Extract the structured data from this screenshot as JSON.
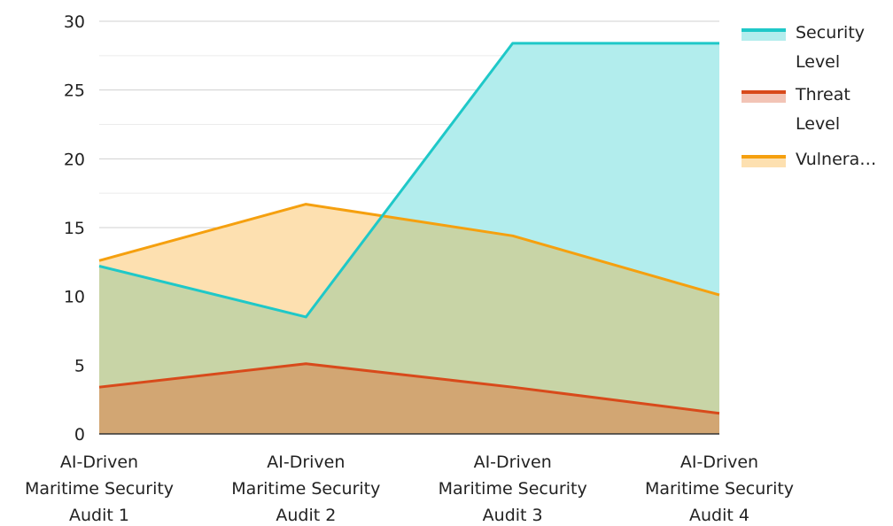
{
  "chart_data": {
    "type": "area",
    "categories": [
      [
        "AI-Driven",
        "Maritime Security",
        "Audit 1"
      ],
      [
        "AI-Driven",
        "Maritime Security",
        "Audit 2"
      ],
      [
        "AI-Driven",
        "Maritime Security",
        "Audit 3"
      ],
      [
        "AI-Driven",
        "Maritime Security",
        "Audit 4"
      ]
    ],
    "series": [
      {
        "name": "Security Level",
        "legend_lines": [
          "Security",
          "Level"
        ],
        "values": [
          12.2,
          8.5,
          28.4,
          28.4
        ],
        "line_color": "#1fc8c8",
        "fill_color": "#b2eded"
      },
      {
        "name": "Threat Level",
        "legend_lines": [
          "Threat",
          "Level"
        ],
        "values": [
          3.4,
          5.1,
          3.4,
          1.5
        ],
        "line_color": "#d84a1b",
        "fill_color": "#f2c4b6"
      },
      {
        "name": "Vulnerability",
        "legend_lines": [
          "Vulnera…"
        ],
        "values": [
          12.6,
          16.7,
          14.4,
          10.1
        ],
        "line_color": "#f5a00f",
        "fill_color": "#fde0b0"
      }
    ],
    "overlap_fills": {
      "security_and_vulnerability": "#c8d4a6",
      "all_three": "#d2a673"
    },
    "ylim": [
      0,
      30
    ],
    "yticks": [
      0,
      5,
      10,
      15,
      20,
      25,
      30
    ],
    "grid": true,
    "legend_position": "right",
    "title": "",
    "xlabel": "",
    "ylabel": ""
  }
}
